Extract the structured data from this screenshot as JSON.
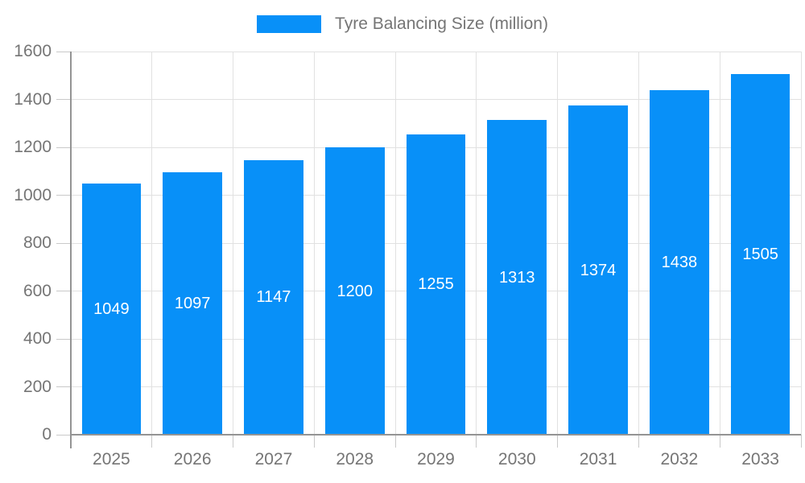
{
  "legend": {
    "label": "Tyre Balancing Size (million)"
  },
  "chart_data": {
    "type": "bar",
    "title": "",
    "xlabel": "",
    "ylabel": "",
    "categories": [
      "2025",
      "2026",
      "2027",
      "2028",
      "2029",
      "2030",
      "2031",
      "2032",
      "2033"
    ],
    "series": [
      {
        "name": "Tyre Balancing Size (million)",
        "values": [
          1049,
          1097,
          1147,
          1200,
          1255,
          1313,
          1374,
          1438,
          1505
        ]
      }
    ],
    "value_labels_shown": true,
    "ylim": [
      0,
      1600
    ],
    "ytick_step": 200,
    "grid": true,
    "legend_position": "top"
  },
  "colors": {
    "bar": "#0890f8",
    "gridline": "#e1e1e1",
    "tick": "#c9c9c9",
    "axis_line": "#949494",
    "axis_label": "#757575",
    "value_label": "#ffffff",
    "background": "#ffffff"
  }
}
